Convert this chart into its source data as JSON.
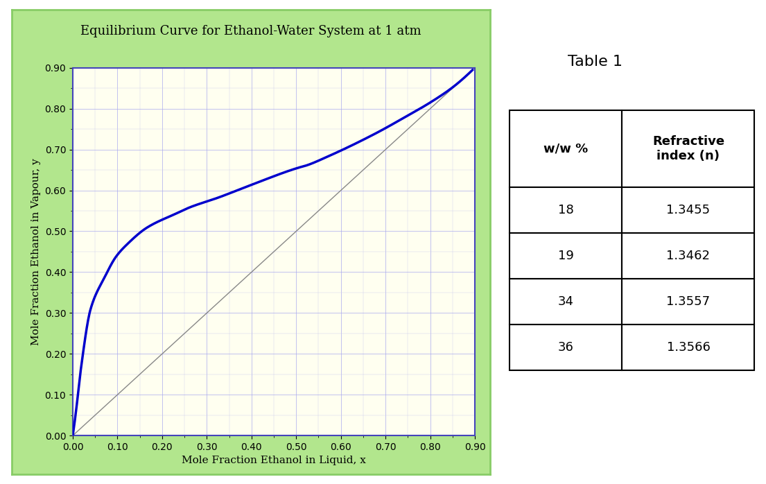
{
  "title": "Equilibrium Curve for Ethanol-Water System at 1 atm",
  "xlabel": "Mole Fraction Ethanol in Liquid, x",
  "ylabel": "Mole Fraction Ethanol in Vapour, y",
  "xlim": [
    0.0,
    0.9
  ],
  "ylim": [
    0.0,
    0.9
  ],
  "xticks": [
    0.0,
    0.1,
    0.2,
    0.3,
    0.4,
    0.5,
    0.6,
    0.7,
    0.8,
    0.9
  ],
  "yticks": [
    0.0,
    0.1,
    0.2,
    0.3,
    0.4,
    0.5,
    0.6,
    0.7,
    0.8,
    0.9
  ],
  "background_outer": "#b2e68d",
  "background_plot": "#fffff0",
  "curve_color": "#0000cc",
  "curve_linewidth": 2.5,
  "diagonal_color": "#888888",
  "diagonal_linewidth": 1.0,
  "grid_color_major": "#aaaaee",
  "grid_color_minor": "#ccccee",
  "grid_linewidth_major": 0.5,
  "grid_linewidth_minor": 0.3,
  "title_fontsize": 13,
  "axis_label_fontsize": 11,
  "tick_fontsize": 10,
  "equilibrium_x": [
    0.0,
    0.005,
    0.01,
    0.019,
    0.04,
    0.0721,
    0.0966,
    0.1238,
    0.1661,
    0.2337,
    0.2608,
    0.3273,
    0.3965,
    0.5079,
    0.5198,
    0.5732,
    0.6763,
    0.7472,
    0.8,
    0.85,
    0.8943
  ],
  "equilibrium_y": [
    0.0,
    0.04,
    0.085,
    0.17,
    0.31,
    0.3891,
    0.4375,
    0.4704,
    0.5089,
    0.5445,
    0.558,
    0.583,
    0.6122,
    0.6564,
    0.6599,
    0.6841,
    0.7385,
    0.7815,
    0.815,
    0.852,
    0.8943
  ],
  "spine_color": "#4444bb",
  "table_title": "Table 1",
  "table_col1_header": "w/w %",
  "table_col2_header": "Refractive\nindex (n)",
  "table_data": [
    [
      "18",
      "1.3455"
    ],
    [
      "19",
      "1.3462"
    ],
    [
      "34",
      "1.3557"
    ],
    [
      "36",
      "1.3566"
    ]
  ],
  "table_title_fontsize": 16,
  "table_header_fontsize": 13,
  "table_data_fontsize": 13
}
